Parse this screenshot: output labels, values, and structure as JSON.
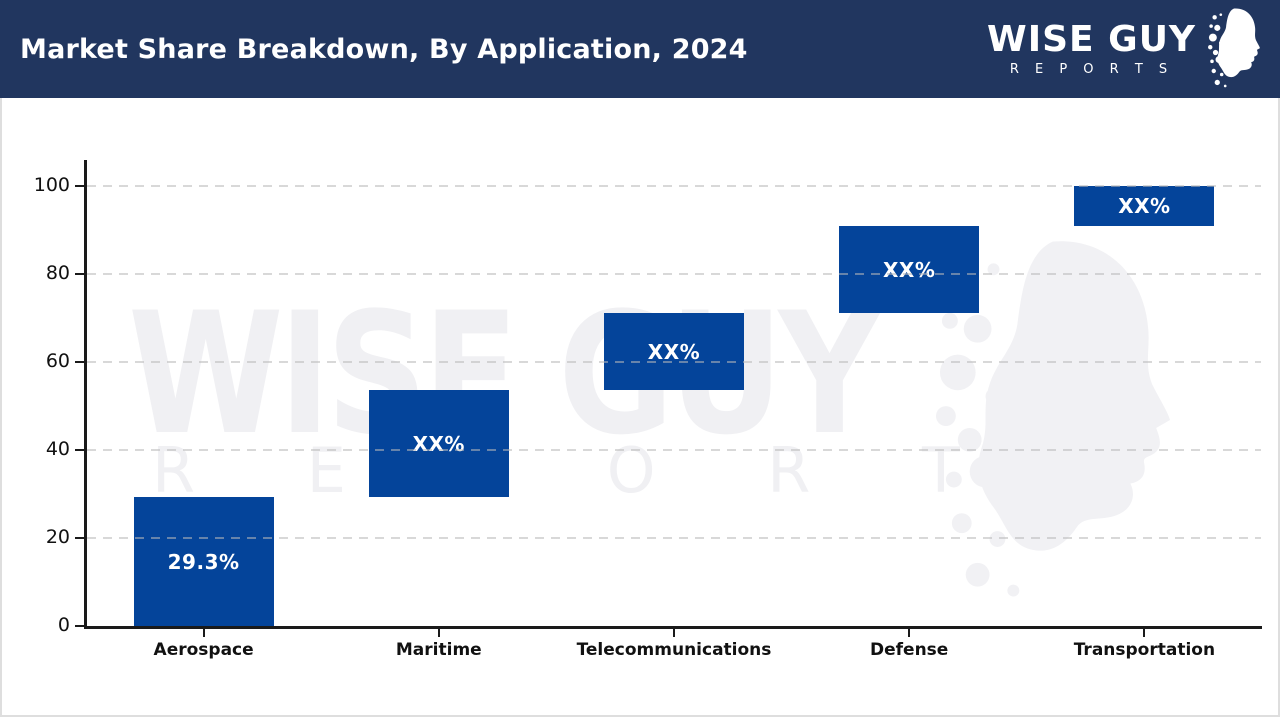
{
  "header": {
    "title": "Market Share Breakdown, By Application, 2024",
    "logo": {
      "name": "WISE GUY",
      "tagline": "R E P O R T S"
    }
  },
  "watermark": {
    "line1": "WISE GUY",
    "line2": "R E P O R T S"
  },
  "chart_data": {
    "type": "bar",
    "subtype": "floating-segment-waterfall",
    "title": "Market Share Breakdown, By Application, 2024",
    "categories": [
      "Aerospace",
      "Maritime",
      "Telecommunications",
      "Defense",
      "Transportation"
    ],
    "segments": [
      {
        "category": "Aerospace",
        "start": 0,
        "end": 29.3,
        "value": 29.3,
        "label": "29.3%"
      },
      {
        "category": "Maritime",
        "start": 29.3,
        "end": 53.6,
        "value": 24.3,
        "label": "XX%"
      },
      {
        "category": "Telecommunications",
        "start": 53.6,
        "end": 71.1,
        "value": 17.5,
        "label": "XX%"
      },
      {
        "category": "Defense",
        "start": 71.1,
        "end": 90.9,
        "value": 19.8,
        "label": "XX%"
      },
      {
        "category": "Transportation",
        "start": 90.9,
        "end": 100.0,
        "value": 9.1,
        "label": "XX%"
      }
    ],
    "ylim": [
      0,
      100
    ],
    "yticks": [
      0,
      20,
      40,
      60,
      80,
      100
    ],
    "xlabel": "",
    "ylabel": "",
    "legend": "none",
    "grid": "horizontal dashed, drawn over bars",
    "bar_color": "#04449a",
    "label_color": "#ffffff",
    "axis_color": "#1a1a1a"
  },
  "colors": {
    "header_bg": "#21365f",
    "bar": "#04449a",
    "gridline": "#dedede",
    "watermark": "#f0f0f3"
  }
}
